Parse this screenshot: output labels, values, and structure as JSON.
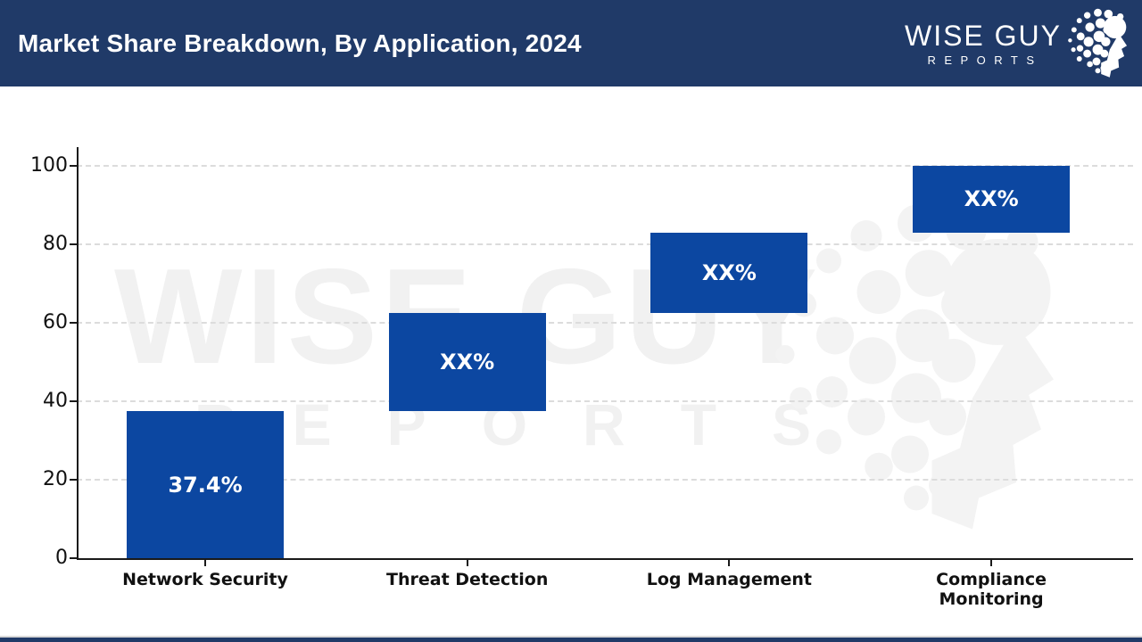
{
  "header": {
    "title": "Market Share Breakdown, By Application, 2024",
    "bg_color": "#203a68",
    "logo": {
      "wordmark": "WISE GUY",
      "subtitle": "REPORTS"
    }
  },
  "watermark": {
    "line1": "WISE GUY",
    "line2": "REPORTS"
  },
  "chart_data": {
    "type": "bar",
    "subtype": "floating-waterfall",
    "title": "Market Share Breakdown, By Application, 2024",
    "categories": [
      "Network Security",
      "Threat Detection",
      "Log Management",
      "Compliance Monitoring"
    ],
    "segments": [
      {
        "category": "Network Security",
        "start": 0,
        "end": 37.4,
        "label": "37.4%"
      },
      {
        "category": "Threat Detection",
        "start": 37.4,
        "end": 62.5,
        "label": "XX%"
      },
      {
        "category": "Log Management",
        "start": 62.5,
        "end": 83,
        "label": "XX%"
      },
      {
        "category": "Compliance Monitoring",
        "start": 83,
        "end": 100,
        "label": "XX%"
      }
    ],
    "yticks": [
      0,
      20,
      40,
      60,
      80,
      100
    ],
    "ylim": [
      0,
      104.8
    ],
    "xlabel": "",
    "ylabel": "",
    "legend": "none",
    "grid": "horizontal-dashed",
    "bar_color": "#0c47a1",
    "bar_label_color": "#ffffff"
  },
  "footer": {
    "accent_color": "#203a68"
  }
}
